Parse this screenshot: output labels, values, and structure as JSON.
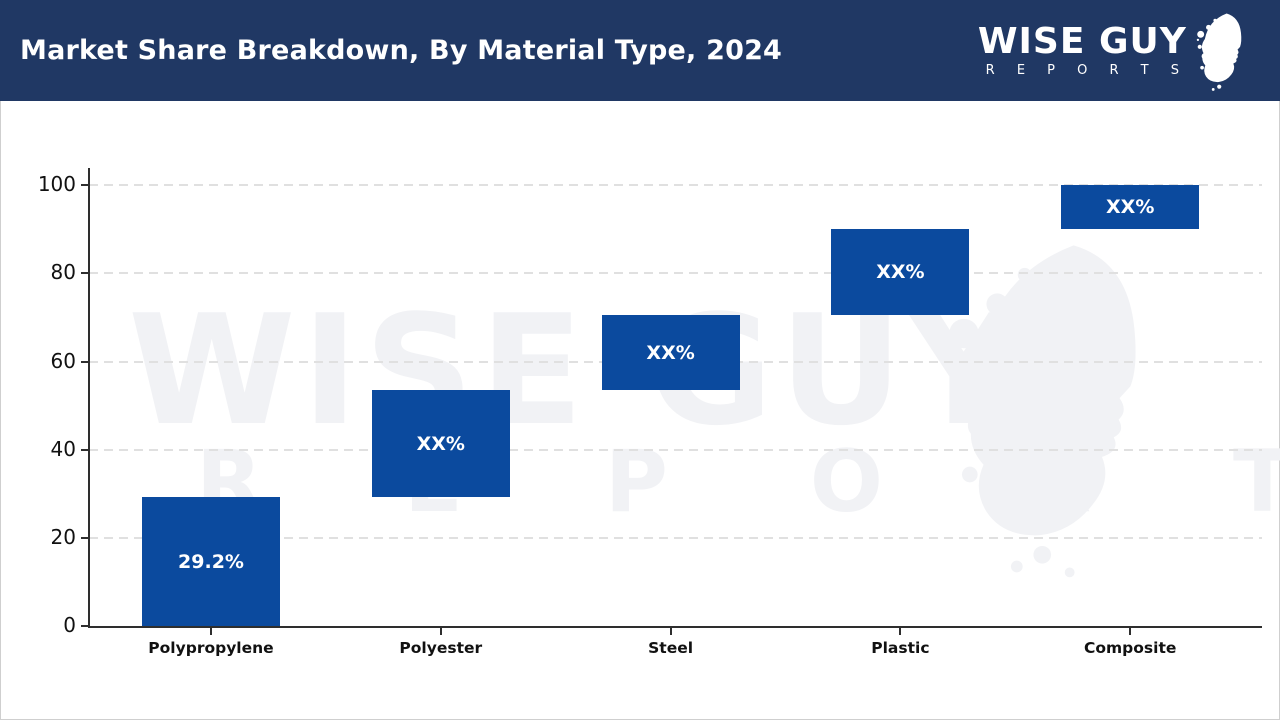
{
  "header": {
    "title": "Market Share Breakdown, By Material Type, 2024",
    "logo": {
      "line1": "WISE GUY",
      "line2": "R E P O R T S"
    }
  },
  "watermark": {
    "line1": "WISE GUY",
    "line2": "R E P O R T S"
  },
  "colors": {
    "header_bg": "#203864",
    "bar_fill": "#0b4a9e",
    "bar_label_text": "#ffffff",
    "grid": "#e0e0e0",
    "axis": "#2e2e2e",
    "tick_text": "#111111",
    "watermark": "#f1f2f5"
  },
  "chart_data": {
    "type": "bar",
    "subtype": "waterfall",
    "title": "Market Share Breakdown, By Material Type, 2024",
    "categories": [
      "Polypropylene",
      "Polyester",
      "Steel",
      "Plastic",
      "Composite"
    ],
    "segments": [
      {
        "category": "Polypropylene",
        "start": 0,
        "end": 29.2,
        "label": "29.2%"
      },
      {
        "category": "Polyester",
        "start": 29.2,
        "end": 53.5,
        "label": "XX%"
      },
      {
        "category": "Steel",
        "start": 53.5,
        "end": 70.5,
        "label": "XX%"
      },
      {
        "category": "Plastic",
        "start": 70.5,
        "end": 90,
        "label": "XX%"
      },
      {
        "category": "Composite",
        "start": 90,
        "end": 100,
        "label": "XX%"
      }
    ],
    "yticks": [
      0,
      20,
      40,
      60,
      80,
      100
    ],
    "ylim": [
      0,
      105
    ],
    "xlabel": "",
    "ylabel": "",
    "grid": "horizontal-dashed",
    "legend": null
  }
}
